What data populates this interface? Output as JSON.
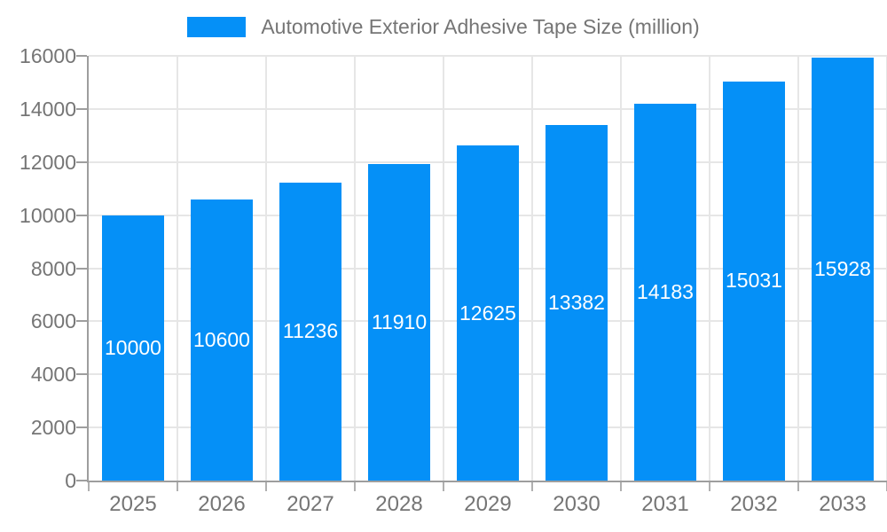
{
  "chart_data": {
    "type": "bar",
    "title": "Automotive Exterior Adhesive Tape Size (million)",
    "legend_position": "top",
    "legend_entries": [
      "Automotive Exterior Adhesive Tape Size (million)"
    ],
    "categories": [
      "2025",
      "2026",
      "2027",
      "2028",
      "2029",
      "2030",
      "2031",
      "2032",
      "2033"
    ],
    "values": [
      10000,
      10600,
      11236,
      11910,
      12625,
      13382,
      14183,
      15031,
      15928
    ],
    "bar_labels": [
      "10000",
      "10600",
      "11236",
      "11910",
      "12625",
      "13382",
      "14183",
      "15031",
      "15928"
    ],
    "xlabel": "",
    "ylabel": "",
    "ylim": [
      0,
      16000
    ],
    "yticks": [
      0,
      2000,
      4000,
      6000,
      8000,
      10000,
      12000,
      14000,
      16000
    ],
    "ytick_labels": [
      "0",
      "2000",
      "4000",
      "6000",
      "8000",
      "10000",
      "12000",
      "14000",
      "16000"
    ],
    "grid": true
  },
  "colors": {
    "bar": "#0590f7",
    "bar_label": "#ffffff",
    "axis_text": "#757575",
    "grid_line": "#e6e6e6",
    "axis_line": "#9e9e9e",
    "tick": "#b0b0b0",
    "background": "#ffffff"
  }
}
